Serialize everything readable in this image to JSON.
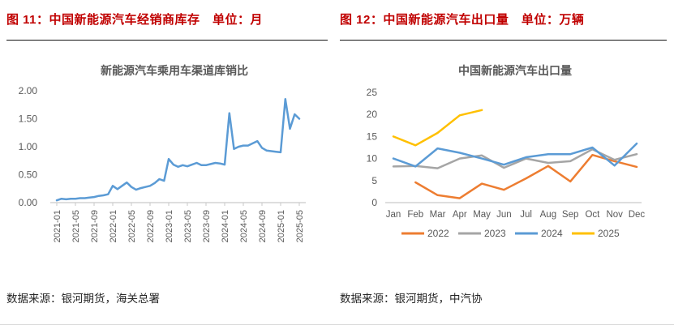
{
  "panels": [
    {
      "header": "图 11：中国新能源汽车经销商库存　单位：月",
      "source": "数据来源：银河期货，海关总署"
    },
    {
      "header": "图 12：中国新能源汽车出口量　单位：万辆",
      "source": "数据来源：银河期货，中汽协"
    }
  ],
  "colors": {
    "header_red": "#C00000",
    "title_text": "#595959",
    "axis_text": "#595959",
    "axis_line": "#C9C9C9",
    "blue": "#5B9BD5",
    "orange": "#ED7D31",
    "gray": "#A5A5A5",
    "yellow": "#FFC000"
  },
  "chart_data": [
    {
      "type": "line",
      "name": "channel-inventory-ratio-chart",
      "title": "新能源汽车乘用车渠道库销比",
      "x_range": [
        "2021-01",
        "2025-05"
      ],
      "x_monthly": true,
      "xticks": [
        "2021-01",
        "2021-05",
        "2021-09",
        "2022-01",
        "2022-05",
        "2022-09",
        "2023-01",
        "2023-05",
        "2023-09",
        "2024-01",
        "2024-05",
        "2024-09",
        "2025-01",
        "2025-05"
      ],
      "yticks": [
        "0.00",
        "0.50",
        "1.00",
        "1.50",
        "2.00"
      ],
      "ytick_values": [
        0,
        0.5,
        1,
        1.5,
        2
      ],
      "ylim": [
        0,
        2
      ],
      "grid": false,
      "legend": false,
      "series": [
        {
          "name": "库销比",
          "color_key": "blue",
          "values": [
            0.04,
            0.07,
            0.06,
            0.07,
            0.07,
            0.08,
            0.08,
            0.09,
            0.1,
            0.12,
            0.13,
            0.15,
            0.3,
            0.24,
            0.3,
            0.36,
            0.28,
            0.23,
            0.26,
            0.28,
            0.3,
            0.35,
            0.42,
            0.39,
            0.78,
            0.68,
            0.64,
            0.67,
            0.65,
            0.68,
            0.71,
            0.67,
            0.67,
            0.69,
            0.71,
            0.7,
            0.68,
            1.6,
            0.96,
            1.0,
            1.02,
            1.02,
            1.06,
            1.1,
            0.98,
            0.93,
            0.92,
            0.91,
            0.9,
            1.85,
            1.32,
            1.58,
            1.5
          ]
        }
      ]
    },
    {
      "type": "line",
      "name": "nev-export-chart",
      "title": "中国新能源汽车出口量",
      "categories": [
        "Jan",
        "Feb",
        "Mar",
        "Apr",
        "May",
        "Jun",
        "Jul",
        "Aug",
        "Sep",
        "Oct",
        "Nov",
        "Dec"
      ],
      "yticks": [
        "0",
        "5",
        "10",
        "15",
        "20",
        "25"
      ],
      "ytick_values": [
        0,
        5,
        10,
        15,
        20,
        25
      ],
      "ylim": [
        0,
        25
      ],
      "grid": false,
      "legend": true,
      "legend_position": "bottom",
      "series": [
        {
          "name": "2022",
          "color_key": "orange",
          "values": [
            null,
            4.6,
            1.7,
            1.0,
            4.3,
            2.9,
            5.5,
            8.3,
            4.8,
            10.8,
            9.4,
            8.1
          ]
        },
        {
          "name": "2023",
          "color_key": "gray",
          "values": [
            8.2,
            8.3,
            7.8,
            10.0,
            10.7,
            7.9,
            10.0,
            9.0,
            9.4,
            12.1,
            9.7,
            11.0
          ]
        },
        {
          "name": "2024",
          "color_key": "blue",
          "values": [
            10.0,
            8.2,
            12.3,
            11.3,
            10.0,
            8.6,
            10.3,
            11.0,
            11.0,
            12.5,
            8.4,
            13.4
          ]
        },
        {
          "name": "2025",
          "color_key": "yellow",
          "values": [
            15.0,
            13.0,
            15.8,
            19.8,
            21.0
          ]
        }
      ]
    }
  ]
}
